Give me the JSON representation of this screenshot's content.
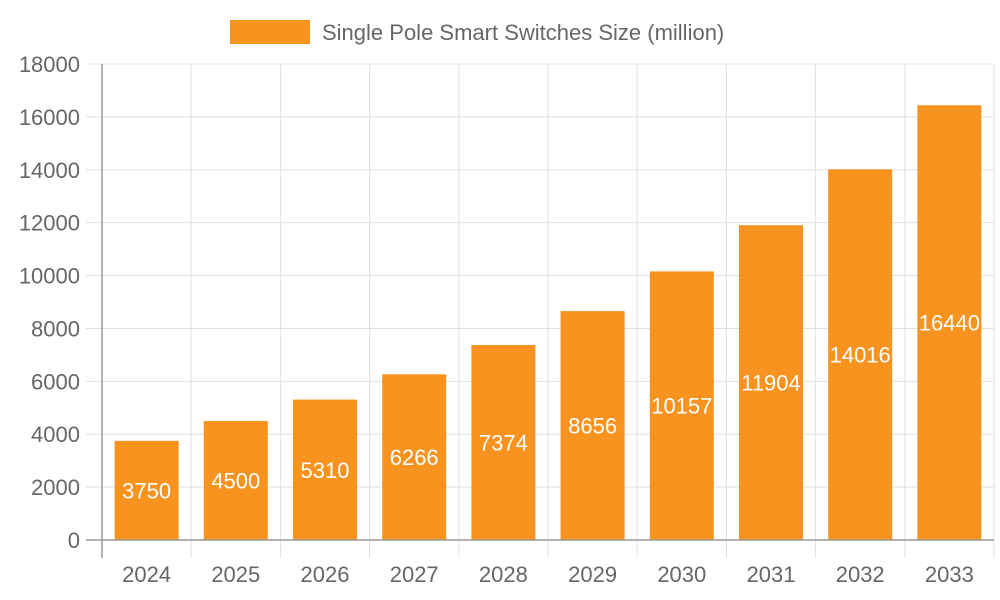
{
  "chart_data": {
    "type": "bar",
    "title": "",
    "xlabel": "",
    "ylabel": "",
    "categories": [
      "2024",
      "2025",
      "2026",
      "2027",
      "2028",
      "2029",
      "2030",
      "2031",
      "2032",
      "2033"
    ],
    "series": [
      {
        "name": "Single Pole Smart Switches Size (million)",
        "values": [
          3750,
          4500,
          5310,
          6266,
          7374,
          8656,
          10157,
          11904,
          14016,
          16440
        ],
        "color": "#F7931E"
      }
    ],
    "ylim": [
      0,
      18000
    ],
    "yticks": [
      0,
      2000,
      4000,
      6000,
      8000,
      10000,
      12000,
      14000,
      16000,
      18000
    ],
    "grid": true,
    "legend_position": "top",
    "data_labels": "inside-center",
    "colors": {
      "bar": "#F7931E",
      "grid": "#e0e0e0",
      "axis": "#999999",
      "text": "#666666",
      "label": "#ffffff"
    }
  }
}
